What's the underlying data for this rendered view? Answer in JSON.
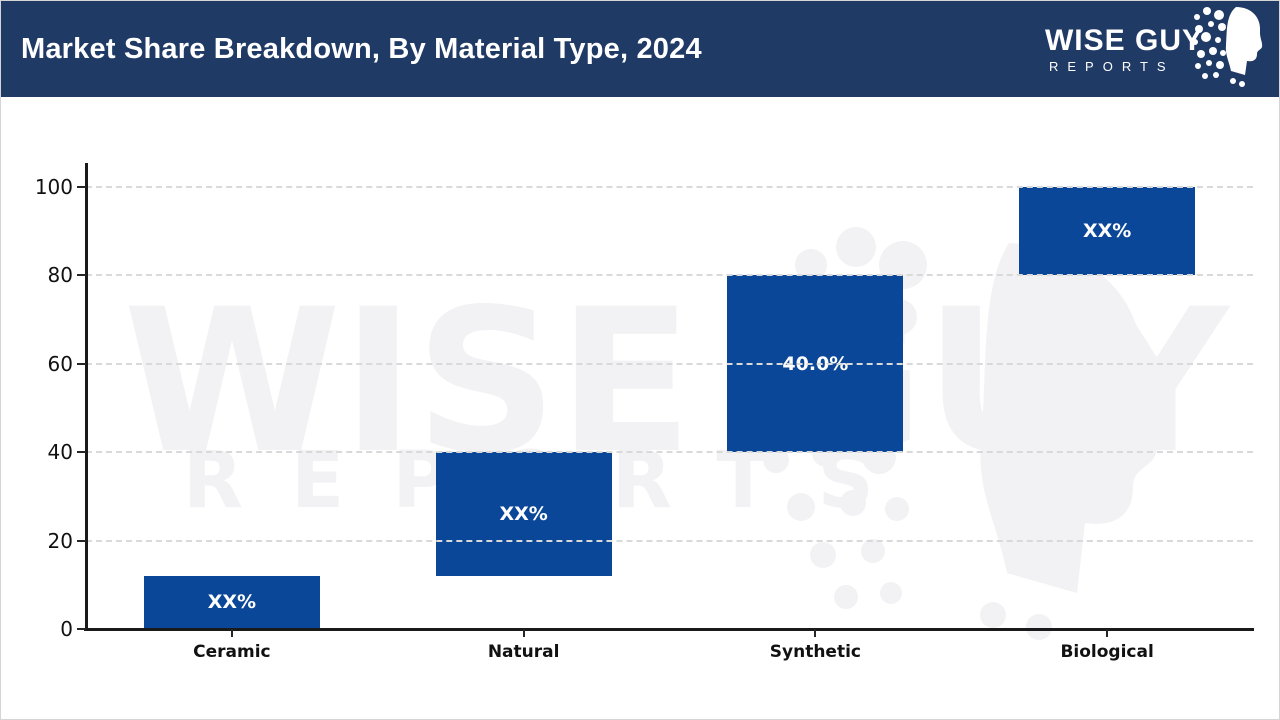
{
  "header": {
    "title": "Market Share Breakdown, By Material Type, 2024",
    "logo": {
      "line1": "WISE GUY",
      "line2": "REPORTS"
    }
  },
  "watermark": {
    "line1": "WISE GUY",
    "line2": "REPORTS"
  },
  "colors": {
    "header_bg": "#203a66",
    "bar_fill": "#0b4798",
    "bar_label_text": "#ffffff",
    "gridline": "#d9d9d9",
    "axis": "#1a1a1a",
    "watermark": "#f2f2f4"
  },
  "chart_data": {
    "type": "bar",
    "subtype": "waterfall",
    "title": "Market Share Breakdown, By Material Type, 2024",
    "xlabel": "",
    "ylabel": "",
    "categories": [
      "Ceramic",
      "Natural",
      "Synthetic",
      "Biological"
    ],
    "values": [
      12,
      28,
      40,
      20
    ],
    "segments": [
      {
        "start": 0,
        "end": 12
      },
      {
        "start": 12,
        "end": 40
      },
      {
        "start": 40,
        "end": 80
      },
      {
        "start": 80,
        "end": 100
      }
    ],
    "bar_labels": [
      "XX%",
      "XX%",
      "40.0%",
      "XX%"
    ],
    "yticks": [
      0,
      20,
      40,
      60,
      80,
      100
    ],
    "ylim": [
      0,
      105
    ],
    "grid": "horizontal-dashed",
    "legend": "none"
  }
}
